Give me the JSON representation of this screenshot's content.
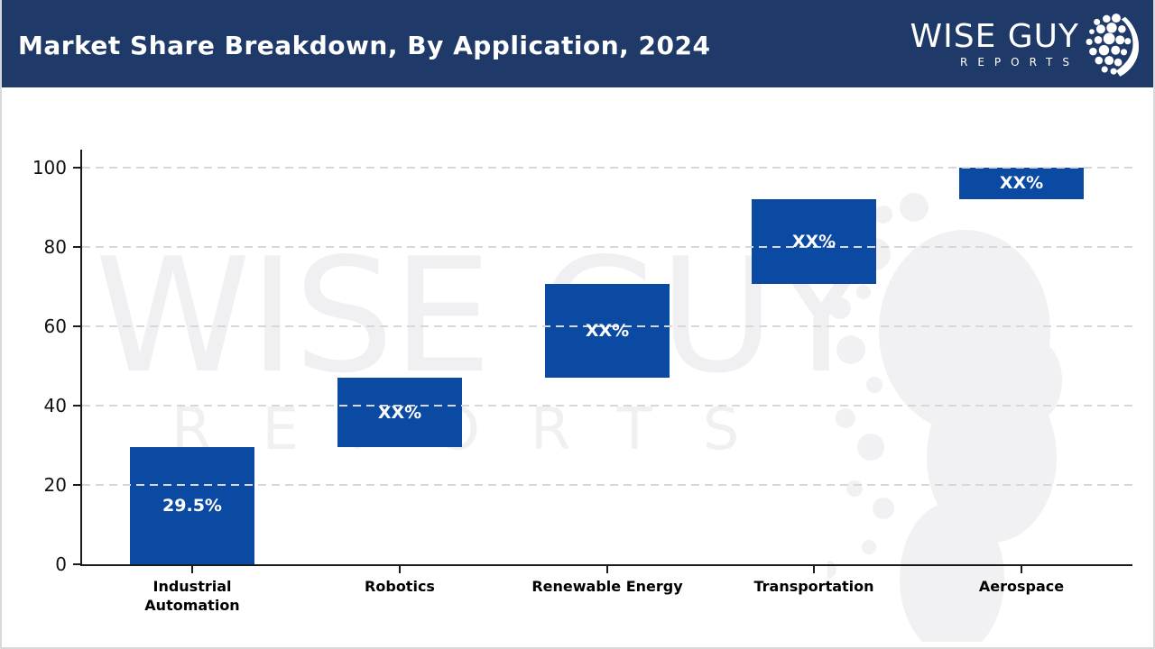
{
  "header": {
    "title": "Market Share Breakdown, By Application, 2024",
    "logo": {
      "line1": "WISE GUY",
      "line2": "REPORTS"
    }
  },
  "watermark": {
    "line1": "WISE GUY",
    "line2": "REPORTS"
  },
  "colors": {
    "header_bg": "#1f3a68",
    "bar": "#0b4aa2",
    "grid": "#d8d8d8",
    "axis": "#1a1a1a",
    "value_label": "#ffffff",
    "watermark": "#f0f0f3"
  },
  "chart_data": {
    "type": "bar",
    "subtype": "waterfall",
    "title": "Market Share Breakdown, By Application, 2024",
    "xlabel": "",
    "ylabel": "",
    "categories": [
      "Industrial Automation",
      "Robotics",
      "Renewable Energy",
      "Transportation",
      "Aerospace"
    ],
    "tick_labels": [
      [
        "Industrial",
        "Automation"
      ],
      [
        "Robotics"
      ],
      [
        "Renewable Energy"
      ],
      [
        "Transportation"
      ],
      [
        "Aerospace"
      ]
    ],
    "series": [
      {
        "name": "Market Share",
        "segments": [
          {
            "category": "Industrial Automation",
            "start": 0,
            "end": 29.5,
            "size": 29.5,
            "label": "29.5%"
          },
          {
            "category": "Robotics",
            "start": 29.5,
            "end": 47,
            "size": 17.5,
            "label": "XX%"
          },
          {
            "category": "Renewable Energy",
            "start": 47,
            "end": 70.5,
            "size": 23.5,
            "label": "XX%"
          },
          {
            "category": "Transportation",
            "start": 70.5,
            "end": 92,
            "size": 21.5,
            "label": "XX%"
          },
          {
            "category": "Aerospace",
            "start": 92,
            "end": 100,
            "size": 8,
            "label": "XX%"
          }
        ]
      }
    ],
    "yticks": [
      0,
      20,
      40,
      60,
      80,
      100
    ],
    "ylim": [
      0,
      105
    ],
    "grid": "horizontal-dashed",
    "legend": "none"
  }
}
